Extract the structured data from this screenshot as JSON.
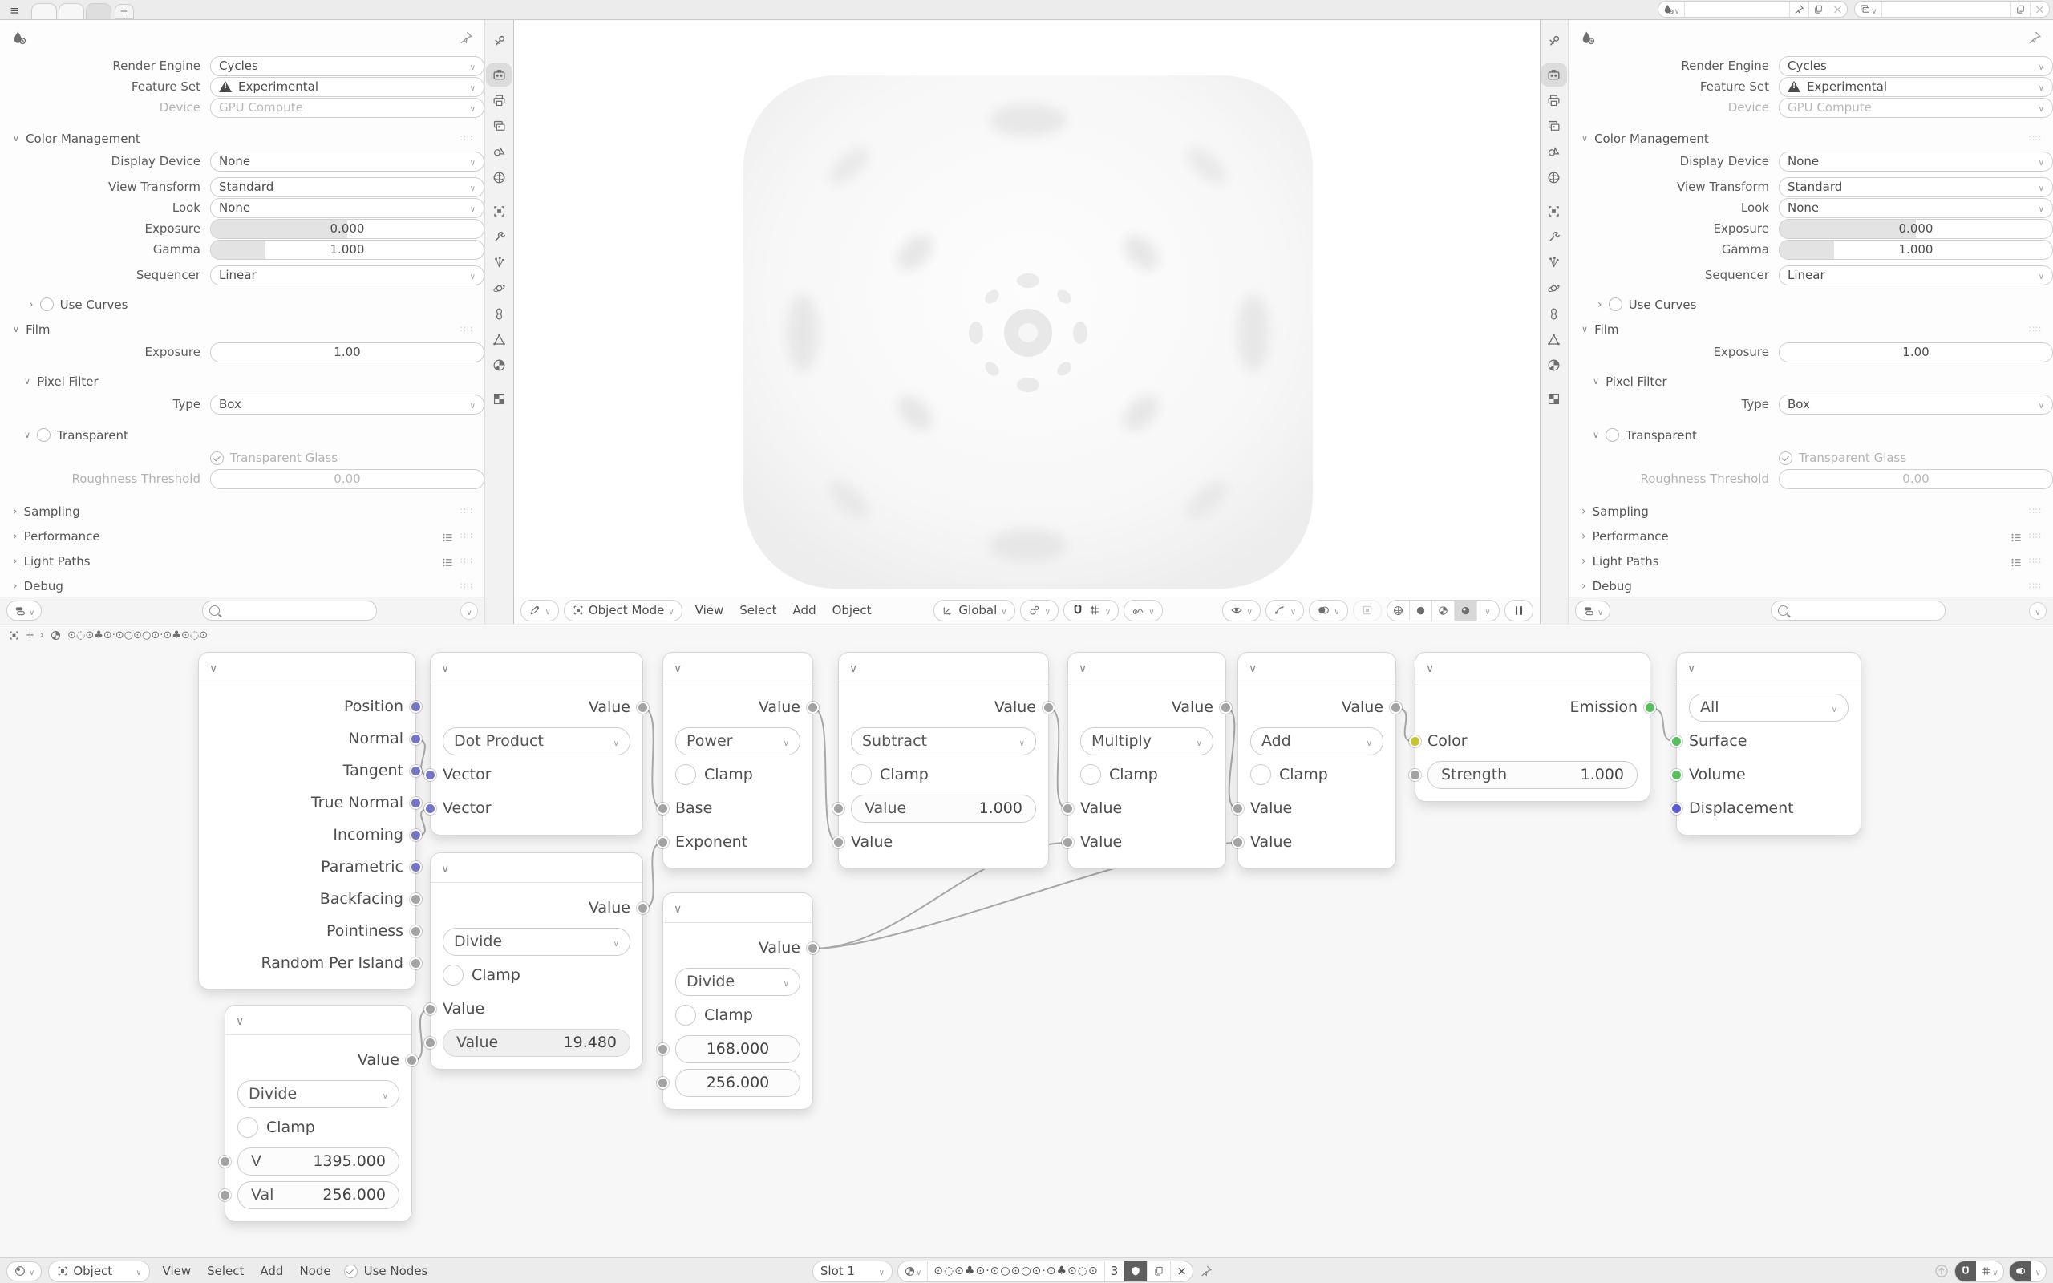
{
  "topbar": {
    "menu_icon": "hamburger-menu",
    "workspace_tab_count": 3,
    "active_tab_index": 2,
    "add_tab_label": "+",
    "scene_selector": {
      "name": "",
      "icons": [
        "scene-icon",
        "pin-icon",
        "copy-icon",
        "close-icon"
      ]
    },
    "viewlayer_selector": {
      "name": "",
      "icons": [
        "viewlayer-icon",
        "copy-icon",
        "close-icon"
      ]
    }
  },
  "properties": {
    "editor_icon": "properties-editor-icon",
    "pin_icon": "pin-icon",
    "tabs": [
      "tool",
      "render",
      "output",
      "view-layer",
      "scene",
      "world",
      "object",
      "modifiers",
      "particles",
      "physics",
      "constraints",
      "object-data",
      "material",
      "texture"
    ],
    "active_tab": "render",
    "rows": {
      "render_engine": {
        "label": "Render Engine",
        "value": "Cycles"
      },
      "feature_set": {
        "label": "Feature Set",
        "value": "Experimental"
      },
      "device": {
        "label": "Device",
        "value": "GPU Compute"
      },
      "display_device": {
        "label": "Display Device",
        "value": "None"
      },
      "view_transform": {
        "label": "View Transform",
        "value": "Standard"
      },
      "look": {
        "label": "Look",
        "value": "None"
      },
      "exposure": {
        "label": "Exposure",
        "value": "0.000"
      },
      "gamma": {
        "label": "Gamma",
        "value": "1.000"
      },
      "sequencer": {
        "label": "Sequencer",
        "value": "Linear"
      },
      "use_curves": {
        "label": "Use Curves"
      },
      "film_exposure": {
        "label": "Exposure",
        "value": "1.00"
      },
      "pixel_filter_type": {
        "label": "Type",
        "value": "Box"
      },
      "transparent": {
        "label": "Transparent"
      },
      "transparent_glass": {
        "label": "Transparent Glass"
      },
      "roughness_threshold": {
        "label": "Roughness Threshold",
        "value": "0.00"
      }
    },
    "sections": {
      "color_management": "Color Management",
      "film": "Film",
      "pixel_filter": "Pixel Filter",
      "sampling": "Sampling",
      "performance": "Performance",
      "light_paths": "Light Paths",
      "debug": "Debug"
    }
  },
  "viewport": {
    "mode": "Object Mode",
    "menu_view": "View",
    "menu_select": "Select",
    "menu_add": "Add",
    "menu_object": "Object",
    "orientation": "Global",
    "right_icons": [
      "visibility-eye",
      "gizmo",
      "overlays",
      "xray",
      "wireframe",
      "solid",
      "material-preview",
      "rendered",
      "pause"
    ]
  },
  "node_editor": {
    "breadcrumb": {
      "object_name": "+",
      "separator": "›",
      "material_name": "⊙◌⊙♣⊙·⊙○⊙○⊙·⊙♣⊙◌⊙"
    },
    "colors": {
      "vector_socket": "#7474c8",
      "value_socket": "#a3a3a3",
      "shader_socket": "#55c05a",
      "color_socket": "#c9c331",
      "displacement_socket": "#5b5bd0",
      "link": "#a8a8a8"
    },
    "nodes": {
      "geometry": {
        "outputs": [
          "Position",
          "Normal",
          "Tangent",
          "True Normal",
          "Incoming",
          "Parametric",
          "Backfacing",
          "Pointiness",
          "Random Per Island"
        ]
      },
      "dot_product": {
        "output": "Value",
        "op": "Dot Product",
        "inputs": [
          "Vector",
          "Vector"
        ]
      },
      "power": {
        "output": "Value",
        "op": "Power",
        "clamp": "Clamp",
        "inputs": [
          "Base",
          "Exponent"
        ]
      },
      "subtract": {
        "output": "Value",
        "op": "Subtract",
        "clamp": "Clamp",
        "field": {
          "label": "Value",
          "value": "1.000"
        },
        "input": "Value"
      },
      "multiply": {
        "output": "Value",
        "op": "Multiply",
        "clamp": "Clamp",
        "inputs": [
          "Value",
          "Value"
        ]
      },
      "add": {
        "output": "Value",
        "op": "Add",
        "clamp": "Clamp",
        "inputs": [
          "Value",
          "Value"
        ]
      },
      "divide_a": {
        "output": "Value",
        "op": "Divide",
        "clamp": "Clamp",
        "input": "Value",
        "field": {
          "label": "Value",
          "value": "19.480"
        }
      },
      "divide_b": {
        "output": "Value",
        "op": "Divide",
        "clamp": "Clamp",
        "fields": [
          {
            "value": "168.000"
          },
          {
            "value": "256.000"
          }
        ]
      },
      "divide_c": {
        "output": "Value",
        "op": "Divide",
        "clamp": "Clamp",
        "fields": [
          {
            "label": "V",
            "value": "1395.000"
          },
          {
            "label": "Val",
            "value": "256.000"
          }
        ]
      },
      "emission": {
        "output": "Emission",
        "input_color": "Color",
        "field": {
          "label": "Strength",
          "value": "1.000"
        }
      },
      "output": {
        "op": "All",
        "inputs": [
          "Surface",
          "Volume",
          "Displacement"
        ]
      }
    },
    "links": [
      {
        "from": "geometry-normal",
        "to": "dot-v1"
      },
      {
        "from": "geometry-incoming",
        "to": "dot-v2"
      },
      {
        "from": "dot-value",
        "to": "power-base"
      },
      {
        "from": "dividec-value",
        "to": "dividea-in1"
      },
      {
        "from": "dividea-value",
        "to": "power-exponent"
      },
      {
        "from": "power-value",
        "to": "subtract-in2"
      },
      {
        "from": "subtract-value",
        "to": "multiply-in1"
      },
      {
        "from": "divideb-value",
        "to": "multiply-in2"
      },
      {
        "from": "divideb-value",
        "to": "add-in2"
      },
      {
        "from": "multiply-value",
        "to": "add-in1"
      },
      {
        "from": "add-value",
        "to": "emission-color"
      },
      {
        "from": "emission-out",
        "to": "output-surface"
      }
    ],
    "footer": {
      "shader_type": "Object",
      "menu_view": "View",
      "menu_select": "Select",
      "menu_add": "Add",
      "menu_node": "Node",
      "use_nodes": "Use Nodes",
      "slot": "Slot 1",
      "material_name": "⊙◌⊙♣⊙·⊙○⊙○⊙·⊙♣⊙◌⊙",
      "users_count": "3",
      "right_icons": [
        "up-arrow",
        "snap-magnet",
        "snap-grid",
        "overlay-toggle"
      ]
    }
  }
}
